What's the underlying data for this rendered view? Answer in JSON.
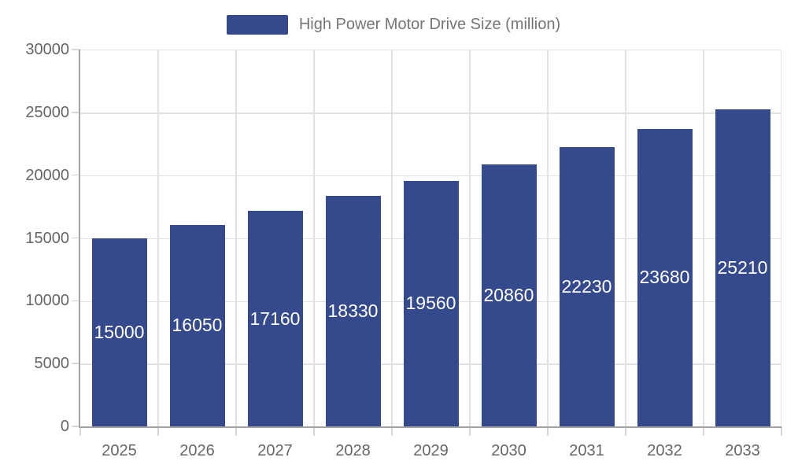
{
  "chart_data": {
    "type": "bar",
    "title": "High Power Motor Drive Size (million)",
    "legend_position": "top-center",
    "categories": [
      "2025",
      "2026",
      "2027",
      "2028",
      "2029",
      "2030",
      "2031",
      "2032",
      "2033"
    ],
    "series": [
      {
        "name": "High Power Motor Drive Size (million)",
        "values": [
          15000,
          16050,
          17160,
          18330,
          19560,
          20860,
          22230,
          23680,
          25210
        ]
      }
    ],
    "xlabel": "",
    "ylabel": "",
    "ylim": [
      0,
      30000
    ],
    "yticks": [
      0,
      5000,
      10000,
      15000,
      20000,
      25000,
      30000
    ],
    "grid": true,
    "value_labels": "inside-center",
    "colors": {
      "bar": "#354A8C",
      "grid": "#E2E2E2",
      "axis": "#A3A3A3",
      "tick": "#D6D6D6",
      "axis_label": "#666666",
      "legend_label": "#757575",
      "value_label": "#FFFFFF",
      "background": "#FFFFFF"
    }
  }
}
